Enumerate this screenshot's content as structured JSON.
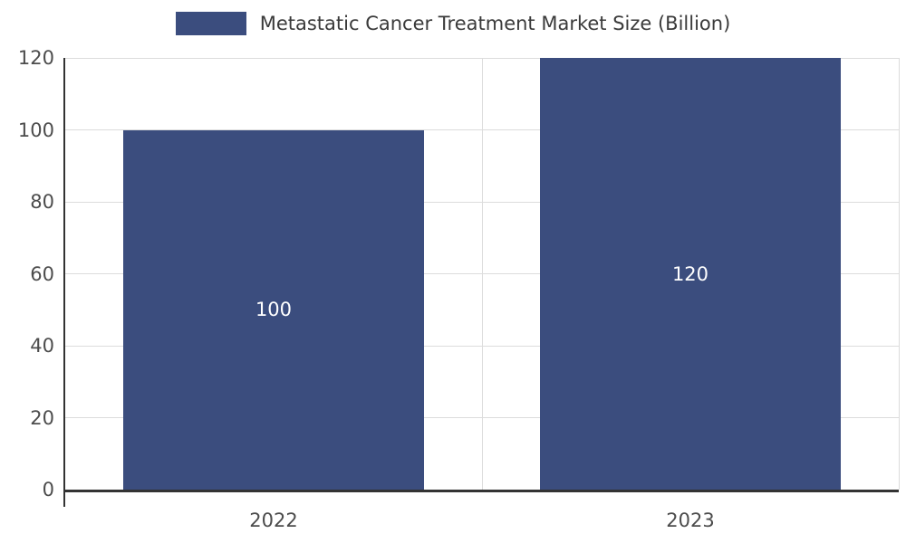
{
  "legend": {
    "label": "Metastatic Cancer Treatment Market Size (Billion)"
  },
  "chart_data": {
    "type": "bar",
    "title": "Metastatic Cancer Treatment Market Size (Billion)",
    "categories": [
      "2022",
      "2023"
    ],
    "values": [
      100,
      120
    ],
    "series": [
      {
        "name": "Metastatic Cancer Treatment Market Size (Billion)",
        "values": [
          100,
          120
        ]
      }
    ],
    "xlabel": "",
    "ylabel": "",
    "ylim": [
      0,
      120
    ],
    "yticks": [
      0,
      20,
      40,
      60,
      80,
      100,
      120
    ],
    "grid": true,
    "legend_position": "top",
    "bar_color": "#3b4d7e",
    "data_label_color": "#ffffff",
    "axis_color": "#333333",
    "gridline_color": "#dcdcdc",
    "tick_label_color": "#4c4c4c"
  }
}
